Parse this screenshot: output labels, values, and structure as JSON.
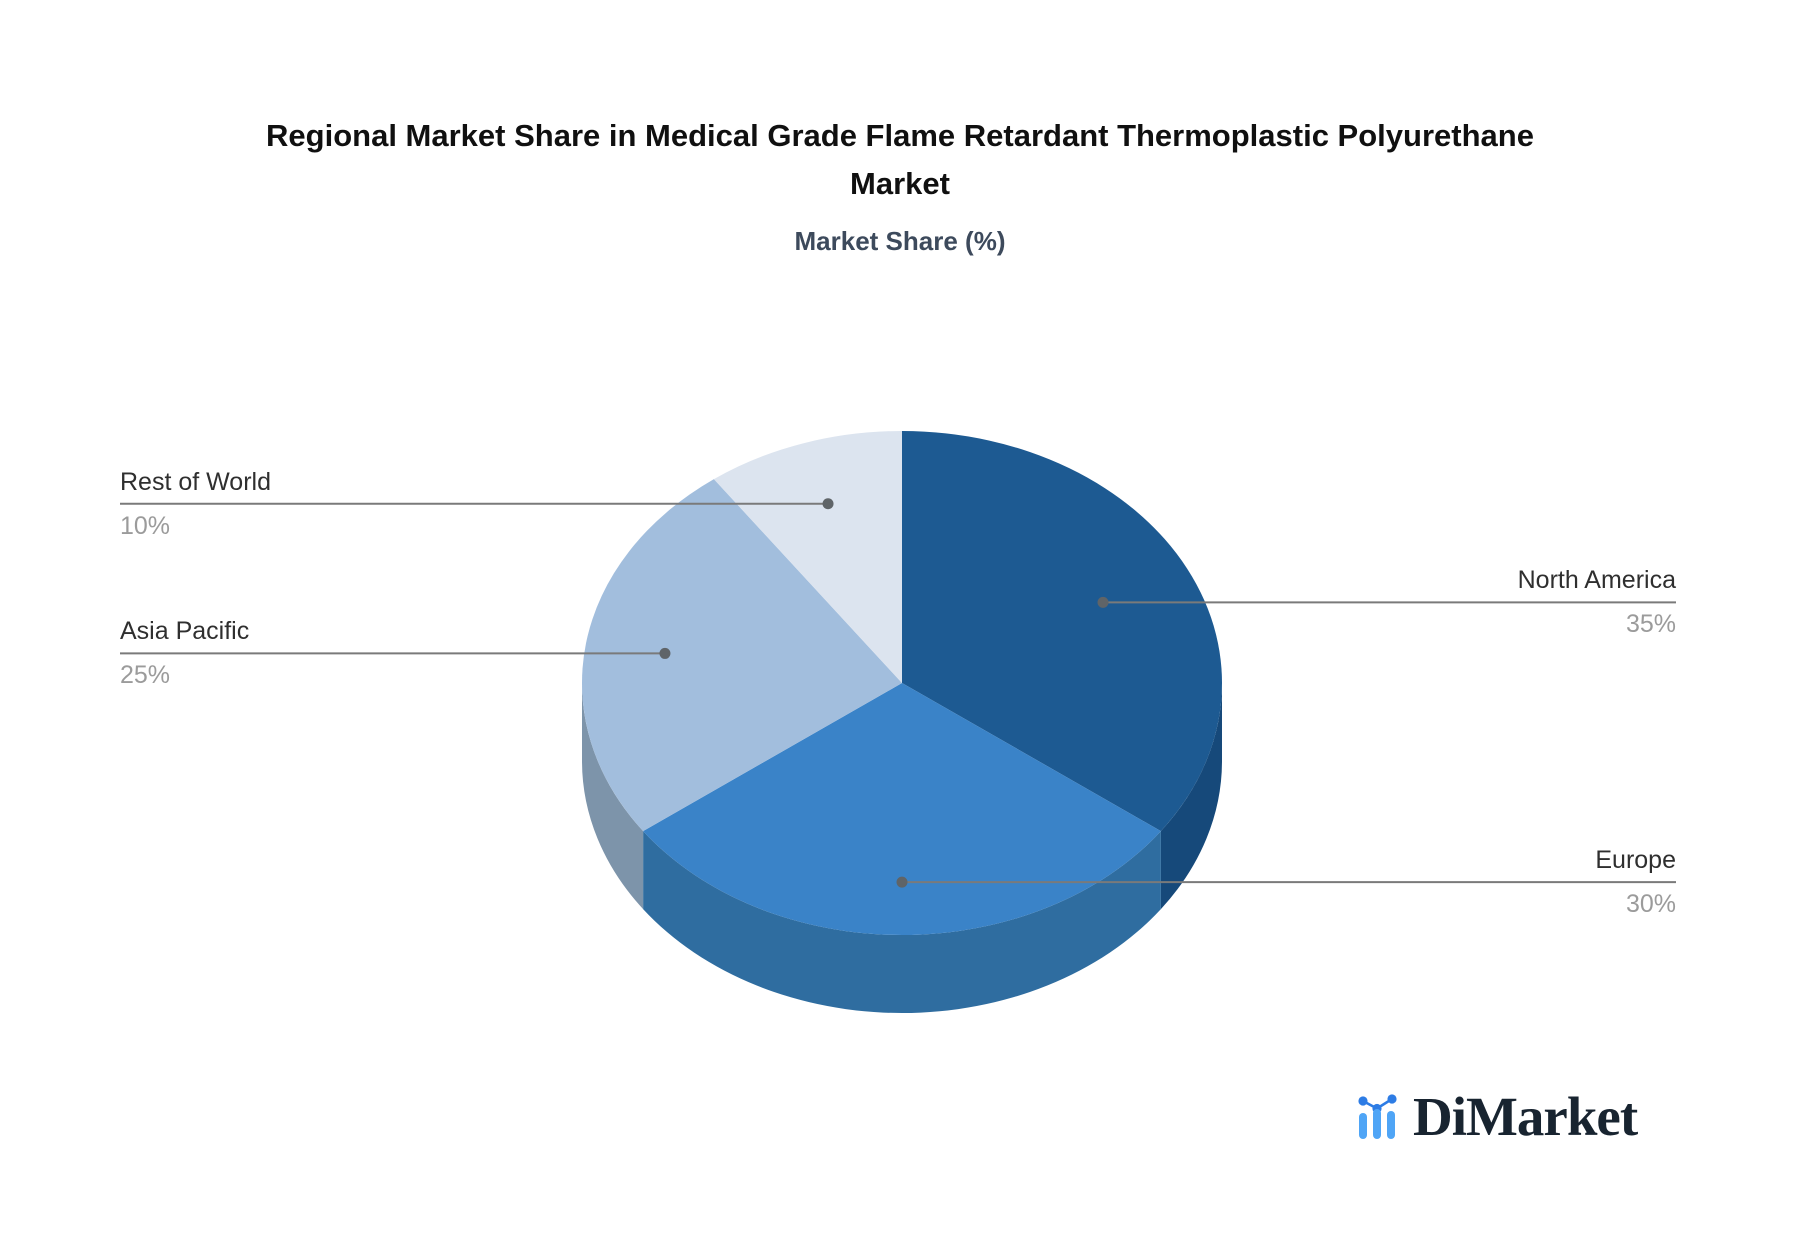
{
  "title": {
    "line1": "Regional Market Share in Medical Grade Flame Retardant Thermoplastic Polyurethane",
    "line2": "Market"
  },
  "subtitle": "Market Share (%)",
  "chart_data": {
    "type": "pie",
    "style": "3d",
    "title": "Regional Market Share in Medical Grade Flame Retardant Thermoplastic Polyurethane Market",
    "subtitle": "Market Share (%)",
    "start_angle_deg": -90,
    "direction": "clockwise",
    "labels": [
      "North America",
      "Europe",
      "Asia Pacific",
      "Rest of World"
    ],
    "values": [
      35,
      30,
      25,
      10
    ],
    "value_labels": [
      "35%",
      "30%",
      "25%",
      "10%"
    ],
    "colors": [
      "#1d5a92",
      "#3a83c8",
      "#a2bedd",
      "#dce4ef"
    ],
    "side_colors": [
      "#16497a",
      "#2f6da0",
      "#7d94aa",
      "#b9c5d8"
    ],
    "leader_line_color": "#7a7a7a",
    "leader_dot_color": "#5f6468",
    "label_color": "#2f2f2f",
    "pct_color": "#9b9b9b",
    "legend": "none"
  },
  "logo": {
    "text": "DiMarket",
    "bar_color": "#4fa5f6",
    "accent_color": "#2d7ce5",
    "text_color": "#182430"
  }
}
